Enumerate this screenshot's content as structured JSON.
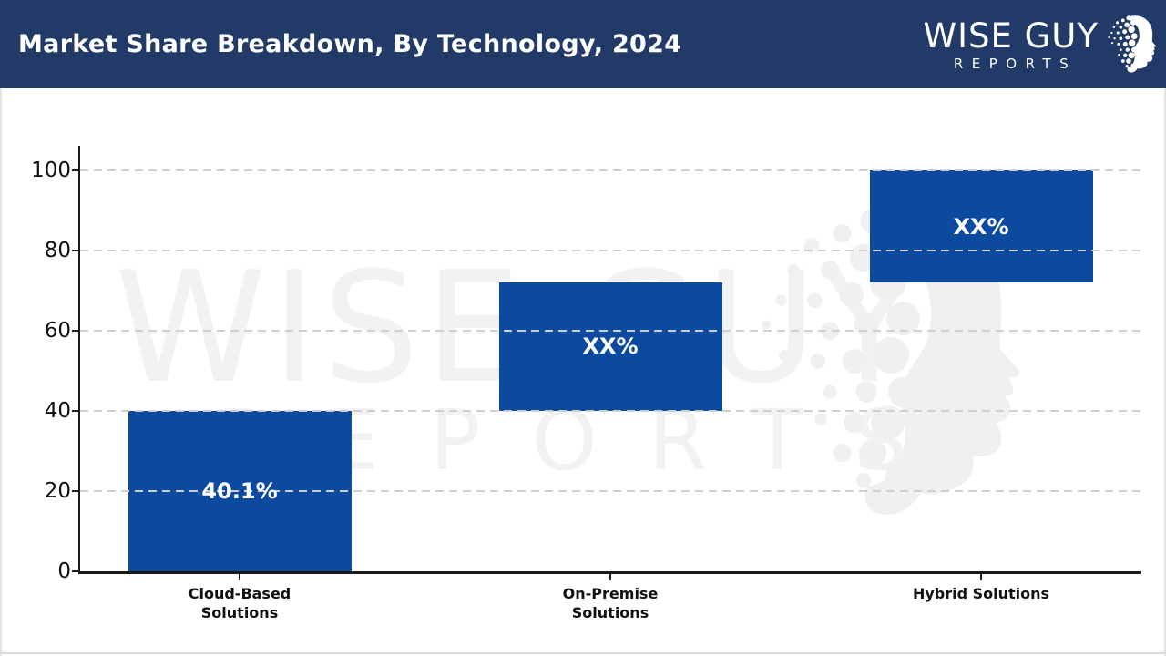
{
  "header": {
    "title": "Market Share Breakdown, By Technology, 2024",
    "logo": {
      "line1": "WISE GUY",
      "line2": "REPORTS"
    }
  },
  "watermark": {
    "line1": "WISE GUY",
    "line2": "REPORTS"
  },
  "chart_data": {
    "type": "bar",
    "subtype": "floating-segment-waterfall",
    "title": "Market Share Breakdown, By Technology, 2024",
    "categories": [
      "Cloud-Based Solutions",
      "On-Premise Solutions",
      "Hybrid Solutions"
    ],
    "category_label_lines": [
      [
        "Cloud-Based",
        "Solutions"
      ],
      [
        "On-Premise",
        "Solutions"
      ],
      [
        "Hybrid Solutions"
      ]
    ],
    "segments": [
      {
        "category": "Cloud-Based Solutions",
        "from": 0,
        "to": 40.1,
        "label": "40.1%"
      },
      {
        "category": "On-Premise Solutions",
        "from": 40.1,
        "to": 72,
        "label": "XX%"
      },
      {
        "category": "Hybrid Solutions",
        "from": 72,
        "to": 100,
        "label": "XX%"
      }
    ],
    "ylim": [
      0,
      100
    ],
    "yticks": [
      0,
      20,
      40,
      60,
      80,
      100
    ],
    "grid": "horizontal-dashed",
    "legend": "none",
    "xlabel": "",
    "ylabel": "",
    "colors": {
      "bar": "#0C4AA0",
      "bar_label": "#FFFFFF",
      "axis": "#1A1A1A",
      "grid": "#CFCFCF",
      "header_bg": "#223A68",
      "watermark": "#F2F2F2"
    }
  }
}
